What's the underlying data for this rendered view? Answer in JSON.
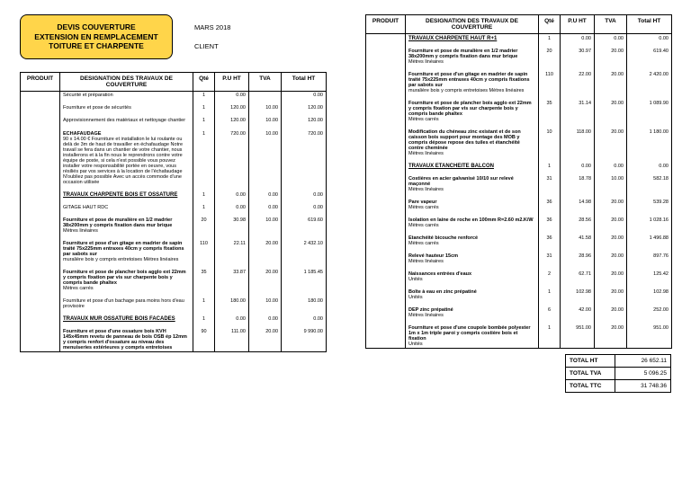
{
  "title": {
    "line1": "DEVIS COUVERTURE",
    "line2": "EXTENSION EN REMPLACEMENT",
    "line3": "TOITURE ET CHARPENTE"
  },
  "meta": {
    "date": "MARS 2018",
    "client_label": "CLIENT"
  },
  "headers": {
    "produit": "PRODUIT",
    "designation": "DESIGNATION DES TRAVAUX DE COUVERTURE",
    "qte": "Qté",
    "pu": "P.U HT",
    "tva": "TVA",
    "total": "Total HT"
  },
  "page1_rows": [
    {
      "kind": "row",
      "desig": "Sécurité et préparation",
      "qte": "1",
      "pu": "0.00",
      "total": "0.00",
      "small": true
    },
    {
      "kind": "spacer"
    },
    {
      "kind": "row",
      "desig": "Fourniture et pose de sécurités",
      "qte": "1",
      "pu": "120.00",
      "tva": "10.00",
      "total": "120.00",
      "small": true
    },
    {
      "kind": "spacer"
    },
    {
      "kind": "row",
      "desig": "Approvisionnement des matériaux et nettoyage chantier",
      "qte": "1",
      "pu": "120.00",
      "tva": "10.00",
      "total": "120.00",
      "small": true
    },
    {
      "kind": "spacer"
    },
    {
      "kind": "row",
      "desig": "ECHAFAUDAGE",
      "sub": "90 x 14.00 €\nFourniture et installation le lui roulante\nou delà de 3m de haut de travailler en\néchafaudage\nNotre travail se fera dans un\nchantier de votre chantier, nous installerons\net à la fin\nnous le reprendrons contre votre\néquipe de poste, si cela n'est possible vous pouvez\ninstaller\nvotre responsabilité portée en oeuvre, vous résiliés par\nvos services à la location de l'échafaudage\nN'oubliez pas possible\nAvec un accès commode d'une\noccasion utilisée",
      "qte": "1",
      "pu": "720.00",
      "tva": "10.00",
      "total": "720.00",
      "bold": true
    },
    {
      "kind": "spacer"
    },
    {
      "kind": "section",
      "desig": "TRAVAUX CHARPENTE BOIS ET OSSATURE",
      "qte": "1",
      "pu": "0.00",
      "tva": "0.00",
      "total": "0.00"
    },
    {
      "kind": "spacer"
    },
    {
      "kind": "row",
      "desig": "GITAGE HAUT RDC",
      "qte": "1",
      "pu": "0.00",
      "tva": "0.00",
      "total": "0.00",
      "small": true
    },
    {
      "kind": "spacer"
    },
    {
      "kind": "row",
      "desig": "Fourniture et pose de muralière en 1/2 madrier 38x200mm y compris fixation dans mur brique",
      "sub": "Mètres linéaires",
      "qte": "20",
      "pu": "30.98",
      "tva": "10.00",
      "total": "619.60",
      "bold": true
    },
    {
      "kind": "spacer"
    },
    {
      "kind": "row",
      "desig": "Fourniture et pose d'un gitage en madrier de sapin traité 75x225mm entraxes 40cm y compris fixations par sabots sur",
      "sub": "muralière bois y compris entretoises\nMètres linéaires",
      "qte": "110",
      "pu": "22.11",
      "tva": "20.00",
      "total": "2 432.10",
      "bold": true
    },
    {
      "kind": "spacer"
    },
    {
      "kind": "row",
      "desig": "Fourniture et pose de plancher bois agglo ext 22mm y compris fixation par vis sur charpente bois y compris bande phaltex",
      "sub": "Mètres carrés",
      "qte": "35",
      "pu": "33.87",
      "tva": "20.00",
      "total": "1 185.45",
      "bold": true
    },
    {
      "kind": "spacer"
    },
    {
      "kind": "row",
      "desig": "Fourniture et pose d'un bachage para moins hors d'eau provisoire",
      "qte": "1",
      "pu": "180.00",
      "tva": "10.00",
      "total": "180.00",
      "small": true
    },
    {
      "kind": "spacer"
    },
    {
      "kind": "section",
      "desig": "TRAVAUX MUR OSSATURE BOIS FACADES",
      "qte": "1",
      "pu": "0.00",
      "tva": "0.00",
      "total": "0.00"
    },
    {
      "kind": "spacer"
    },
    {
      "kind": "row",
      "desig": "Fourniture et pose d'une ossature bois KVH 145x45mm revetu de panneau de bois OSB ép 12mm y compris renfort d'ossature au niveau des menuiseries extérieures y compris entretoises",
      "qte": "90",
      "pu": "111.00",
      "tva": "20.00",
      "total": "9 990.00",
      "bold": true
    }
  ],
  "page2_rows": [
    {
      "kind": "section",
      "desig": "TRAVAUX CHARPENTE HAUT R+1",
      "qte": "1",
      "pu": "0.00",
      "tva": "0.00",
      "total": "0.00"
    },
    {
      "kind": "spacer"
    },
    {
      "kind": "row",
      "desig": "Fourniture et pose de muralière en 1/2 madrier 38x200mm y compris fixation dans mur brique",
      "sub": "Mètres linéaires",
      "qte": "20",
      "pu": "30.97",
      "tva": "20.00",
      "total": "619.40",
      "bold": true
    },
    {
      "kind": "spacer"
    },
    {
      "kind": "row",
      "desig": "Fourniture et pose d'un gitage en madrier de sapin traité 75x225mm entraxes 40cm y compris fixations par sabots sur",
      "sub": "muralière bois y compris entretoises\nMètres linéaires",
      "qte": "110",
      "pu": "22.00",
      "tva": "20.00",
      "total": "2 420.00",
      "bold": true
    },
    {
      "kind": "spacer"
    },
    {
      "kind": "row",
      "desig": "Fourniture et pose de plancher bois agglo ext 22mm y compris fixation par vis sur charpente bois y compris bande phaltex",
      "sub": "Mètres carrés",
      "qte": "35",
      "pu": "31.14",
      "tva": "20.00",
      "total": "1 089.90",
      "bold": true
    },
    {
      "kind": "spacer"
    },
    {
      "kind": "row",
      "desig": "Modification du chéneau zinc existant et de son caisson bois support pour montage des MOB y compris dépose repose des tuiles et étanchéité contre cheminée",
      "sub": "Mètres linéaires",
      "qte": "10",
      "pu": "118.00",
      "tva": "20.00",
      "total": "1 180.00",
      "bold": true
    },
    {
      "kind": "spacer"
    },
    {
      "kind": "section",
      "desig": "TRAVAUX ETANCHEITE BALCON",
      "qte": "1",
      "pu": "0.00",
      "tva": "0.00",
      "total": "0.00"
    },
    {
      "kind": "spacer"
    },
    {
      "kind": "row",
      "desig": "Costières en acier galvanisé 10/10 sur relevé maçonné",
      "sub": "Mètres linéaires",
      "qte": "31",
      "pu": "18.78",
      "tva": "10.00",
      "total": "582.18",
      "bold": true
    },
    {
      "kind": "spacer"
    },
    {
      "kind": "row",
      "desig": "Pare vapeur",
      "sub": "Mètres carrés",
      "qte": "36",
      "pu": "14.98",
      "tva": "20.00",
      "total": "539.28",
      "bold": true
    },
    {
      "kind": "spacer"
    },
    {
      "kind": "row",
      "desig": "Isolation en laine de roche en 100mm R=2.60 m2.K/W",
      "sub": "Mètres carrés",
      "qte": "36",
      "pu": "28.56",
      "tva": "20.00",
      "total": "1 028.16",
      "bold": true
    },
    {
      "kind": "spacer"
    },
    {
      "kind": "row",
      "desig": "Etanchéité bicouche renforcé",
      "sub": "Mètres carrés",
      "qte": "36",
      "pu": "41.58",
      "tva": "20.00",
      "total": "1 496.88",
      "bold": true
    },
    {
      "kind": "spacer"
    },
    {
      "kind": "row",
      "desig": "Relevé hauteur 15cm",
      "sub": "Mètres linéaires",
      "qte": "31",
      "pu": "28.96",
      "tva": "20.00",
      "total": "897.76",
      "bold": true
    },
    {
      "kind": "spacer"
    },
    {
      "kind": "row",
      "desig": "Naissances entrées d'eaux",
      "sub": "Unités",
      "qte": "2",
      "pu": "62.71",
      "tva": "20.00",
      "total": "125.42",
      "bold": true
    },
    {
      "kind": "spacer"
    },
    {
      "kind": "row",
      "desig": "Boîte à eau en zinc prépatiné",
      "sub": "Unités",
      "qte": "1",
      "pu": "102.98",
      "tva": "20.00",
      "total": "102.98",
      "bold": true
    },
    {
      "kind": "spacer"
    },
    {
      "kind": "row",
      "desig": "DEP zinc prépatiné",
      "sub": "Mètres linéaires",
      "qte": "6",
      "pu": "42.00",
      "tva": "20.00",
      "total": "252.00",
      "bold": true
    },
    {
      "kind": "spacer"
    },
    {
      "kind": "row",
      "desig": "Fourniture et pose d'une coupole bombée polyester 1m x 1m triple paroi y compris costière bois et fixation",
      "sub": "Unités",
      "qte": "1",
      "pu": "951.00",
      "tva": "20.00",
      "total": "951.00",
      "bold": true
    }
  ],
  "totals": {
    "ht_label": "TOTAL HT",
    "ht_value": "26 652.11",
    "tva_label": "TOTAL TVA",
    "tva_value": "5 096.25",
    "ttc_label": "TOTAL TTC",
    "ttc_value": "31 748.36"
  }
}
